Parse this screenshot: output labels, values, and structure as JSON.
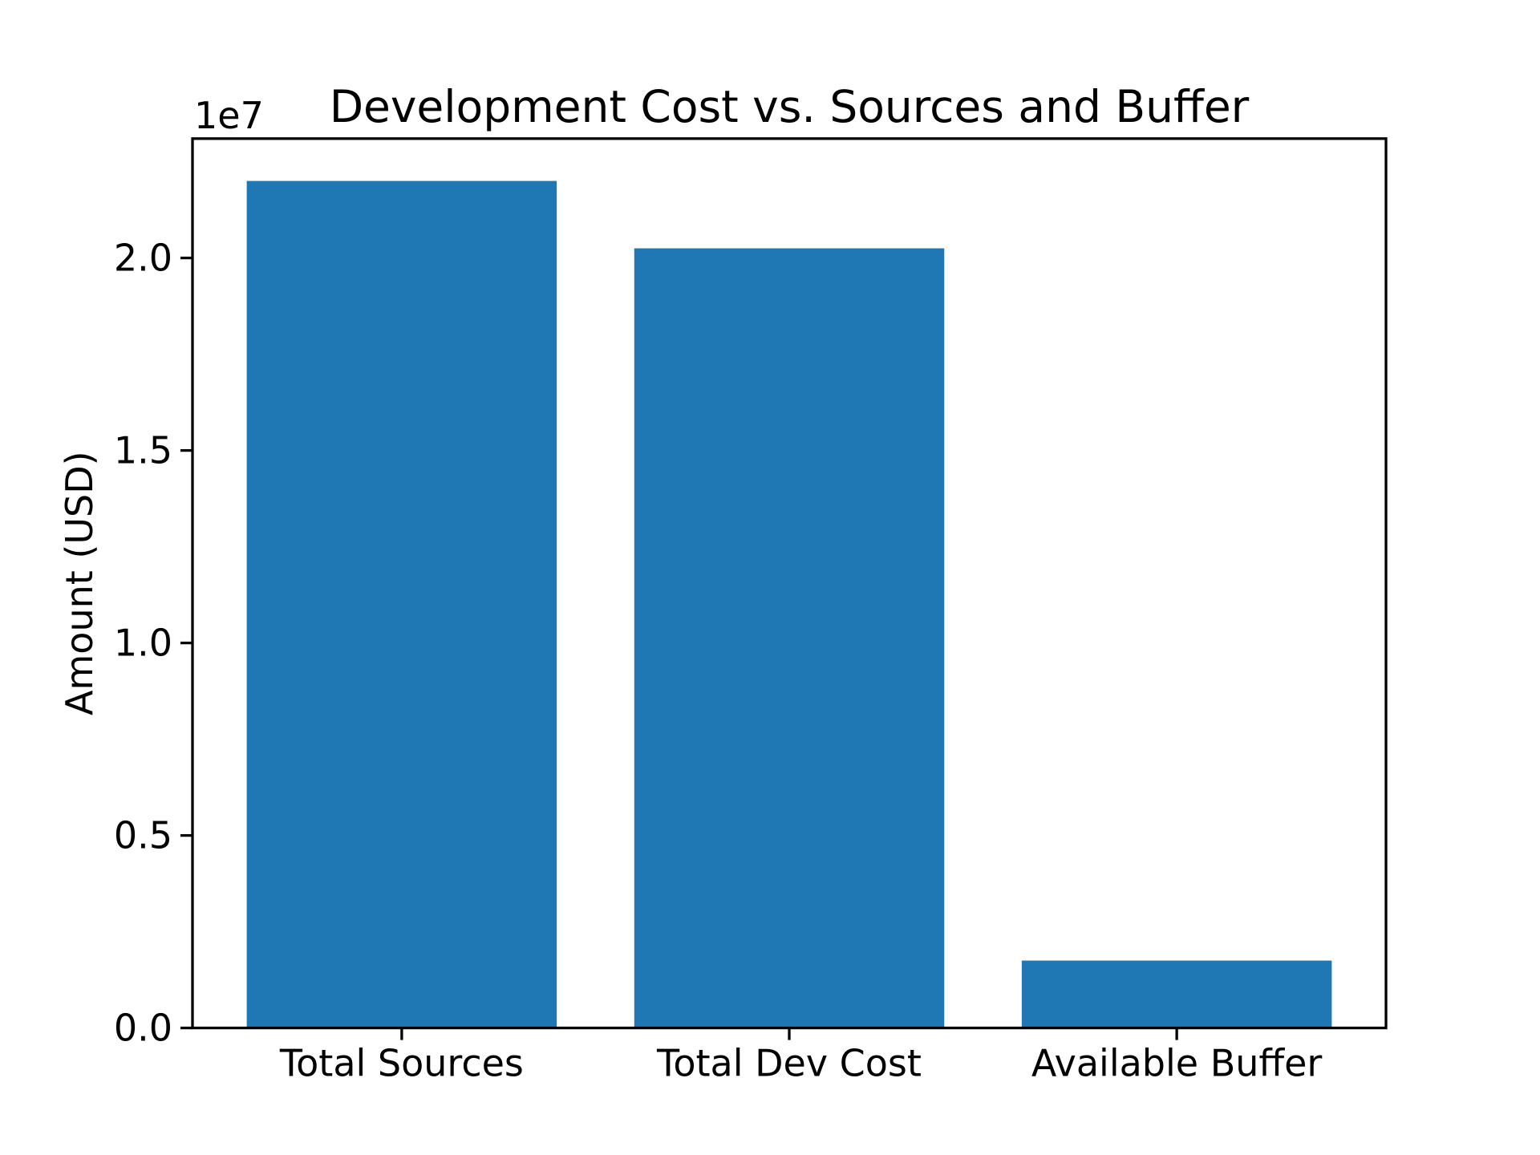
{
  "figure": {
    "background": "#ffffff",
    "text_color": "#000000"
  },
  "chart_data": {
    "type": "bar",
    "title": "Development Cost vs. Sources and Buffer",
    "categories": [
      "Total Sources",
      "Total Dev Cost",
      "Available Buffer"
    ],
    "values": [
      22000000,
      20250000,
      1750000
    ],
    "xlabel": "",
    "ylabel": "Amount (USD)",
    "offset_text": "1e7",
    "ylim": [
      0,
      23100000
    ],
    "xlim": [
      -0.54,
      2.54
    ],
    "yticks": [
      0,
      5000000,
      10000000,
      15000000,
      20000000
    ],
    "ytick_labels": [
      "0.0",
      "0.5",
      "1.0",
      "1.5",
      "2.0"
    ],
    "bar_width": 0.8,
    "bar_color": "#1f77b4",
    "axis_color": "#000000",
    "grid": false,
    "legend": null
  }
}
